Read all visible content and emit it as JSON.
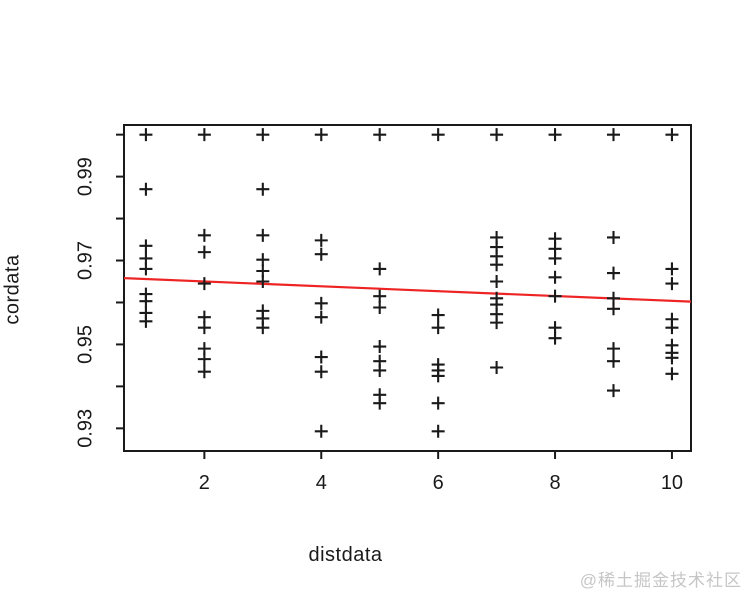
{
  "figure": {
    "background": "#ffffff",
    "watermark": {
      "text": "@稀土掘金技术社区",
      "color": "#c6c6c6"
    }
  },
  "chart_data": {
    "type": "scatter",
    "title": "",
    "xlabel": "distdata",
    "ylabel": "cordata",
    "marker": "plus",
    "marker_color": "#1a1a1a",
    "axis_color": "#1a1a1a",
    "grid": false,
    "xlim": [
      0.625,
      10.326
    ],
    "ylim": [
      0.9246,
      1.0023
    ],
    "x_ticks": [
      {
        "v": 2,
        "label": "2"
      },
      {
        "v": 4,
        "label": "4"
      },
      {
        "v": 6,
        "label": "6"
      },
      {
        "v": 8,
        "label": "8"
      },
      {
        "v": 10,
        "label": "10"
      }
    ],
    "y_ticks": [
      {
        "v": 0.93,
        "label": "0.93"
      },
      {
        "v": 0.94,
        "label": ""
      },
      {
        "v": 0.95,
        "label": "0.95"
      },
      {
        "v": 0.96,
        "label": ""
      },
      {
        "v": 0.97,
        "label": "0.97"
      },
      {
        "v": 0.98,
        "label": ""
      },
      {
        "v": 0.99,
        "label": "0.99"
      },
      {
        "v": 1.0,
        "label": ""
      }
    ],
    "series": [
      {
        "x": 1,
        "y": [
          1.0,
          0.987,
          0.9735,
          0.9705,
          0.968,
          0.962,
          0.9603,
          0.9575,
          0.9555
        ]
      },
      {
        "x": 2,
        "y": [
          1.0,
          0.976,
          0.972,
          0.9645,
          0.9565,
          0.954,
          0.949,
          0.9465,
          0.9435
        ]
      },
      {
        "x": 3,
        "y": [
          1.0,
          0.987,
          0.976,
          0.9702,
          0.9675,
          0.965,
          0.958,
          0.9562,
          0.954
        ]
      },
      {
        "x": 4,
        "y": [
          1.0,
          0.9748,
          0.9715,
          0.9598,
          0.9565,
          0.947,
          0.9435,
          0.9293
        ]
      },
      {
        "x": 5,
        "y": [
          1.0,
          0.968,
          0.9615,
          0.9588,
          0.9495,
          0.946,
          0.9438,
          0.938,
          0.936
        ]
      },
      {
        "x": 6,
        "y": [
          1.0,
          0.957,
          0.954,
          0.9452,
          0.9438,
          0.9425,
          0.936,
          0.9293
        ]
      },
      {
        "x": 7,
        "y": [
          1.0,
          0.9755,
          0.9732,
          0.971,
          0.969,
          0.965,
          0.961,
          0.9595,
          0.9572,
          0.9552,
          0.9445
        ]
      },
      {
        "x": 8,
        "y": [
          1.0,
          0.9752,
          0.9728,
          0.9705,
          0.966,
          0.9615,
          0.954,
          0.9515
        ]
      },
      {
        "x": 9,
        "y": [
          1.0,
          0.9755,
          0.967,
          0.961,
          0.9585,
          0.949,
          0.946,
          0.939
        ]
      },
      {
        "x": 10,
        "y": [
          1.0,
          0.968,
          0.9645,
          0.956,
          0.954,
          0.9498,
          0.948,
          0.9468,
          0.943
        ]
      }
    ],
    "regression_line": {
      "color": "#ee2424",
      "x1": 0.625,
      "y1": 0.9658,
      "x2": 10.326,
      "y2": 0.9602
    }
  }
}
